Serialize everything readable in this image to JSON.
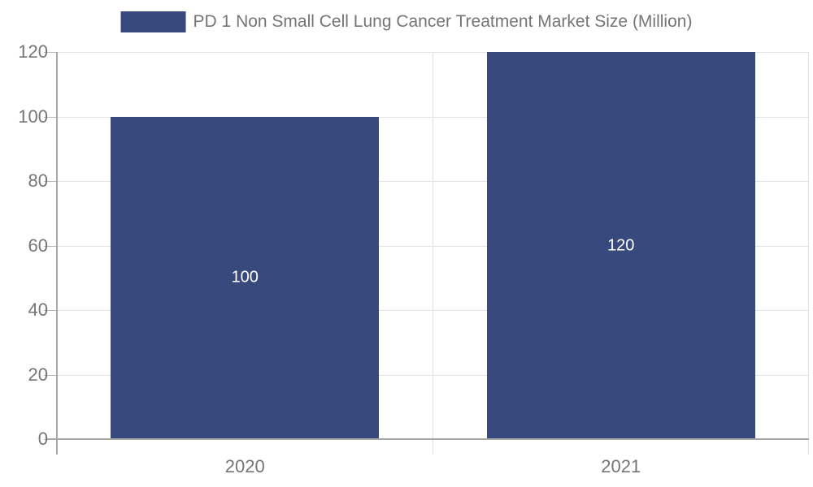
{
  "chart_data": {
    "type": "bar",
    "title": "",
    "series_name": "PD 1 Non Small Cell Lung Cancer Treatment Market Size (Million)",
    "categories": [
      "2020",
      "2021"
    ],
    "values": [
      100,
      120
    ],
    "value_labels": [
      "100",
      "120"
    ],
    "xlabel": "",
    "ylabel": "",
    "ylim": [
      0,
      120
    ],
    "yticks": [
      0,
      20,
      40,
      60,
      80,
      100,
      120
    ],
    "grid": true,
    "legend_position": "top",
    "colors": {
      "bar": "#384A7D",
      "label_text": "#757575",
      "grid": "#e2e2e2",
      "axis": "#a8a8a8",
      "tick": "#b5b5b5",
      "value_label": "#ffffff",
      "background": "#ffffff"
    }
  }
}
